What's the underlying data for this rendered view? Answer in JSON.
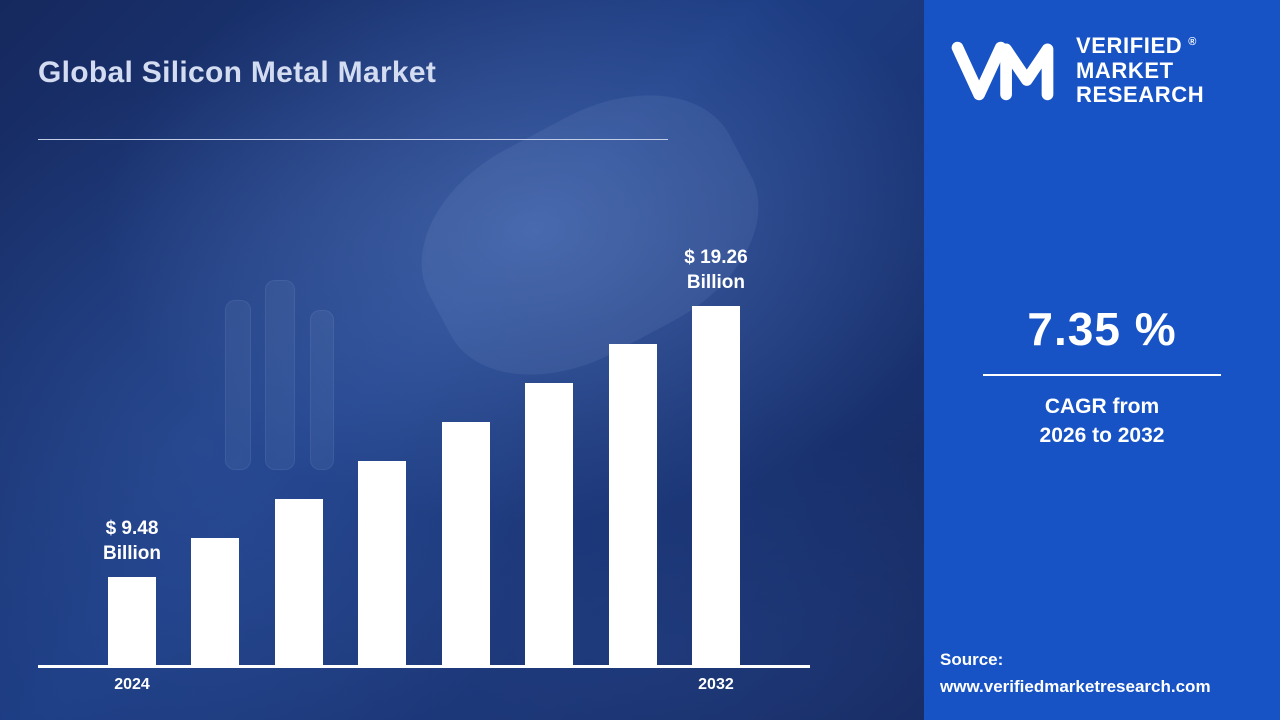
{
  "title": "Global Silicon Metal Market",
  "logo": {
    "line1": "VERIFIED",
    "line2": "MARKET",
    "line3": "RESEARCH",
    "registered_mark": "®"
  },
  "stats": {
    "cagr_value": "7.35 %",
    "cagr_caption_line1": "CAGR from",
    "cagr_caption_line2": "2026 to 2032"
  },
  "source": {
    "label": "Source:",
    "url": "www.verifiedmarketresearch.com"
  },
  "colors": {
    "right_panel_blue": "#1753c5",
    "left_background_navy": "#16295e",
    "bar_white": "#ffffff",
    "title_text": "#d4dcf1"
  },
  "chart_data": {
    "type": "bar",
    "title": "Global Silicon Metal Market",
    "categories": [
      "2024",
      "",
      "",
      "",
      "",
      "",
      "",
      "2032"
    ],
    "values": [
      9.48,
      10.88,
      12.28,
      13.67,
      15.07,
      16.47,
      17.86,
      19.26
    ],
    "unit": "USD Billion",
    "first_value_label": "$ 9.48 Billion",
    "last_value_label": "$ 19.26 Billion",
    "annotations": [
      {
        "index": 0,
        "lines": [
          "$ 9.48",
          "Billion"
        ]
      },
      {
        "index": 7,
        "lines": [
          "$ 19.26",
          "Billion"
        ]
      }
    ],
    "xlabel": "",
    "ylabel": "",
    "ylim": [
      6.3,
      20
    ],
    "grid": false,
    "legend": false
  }
}
